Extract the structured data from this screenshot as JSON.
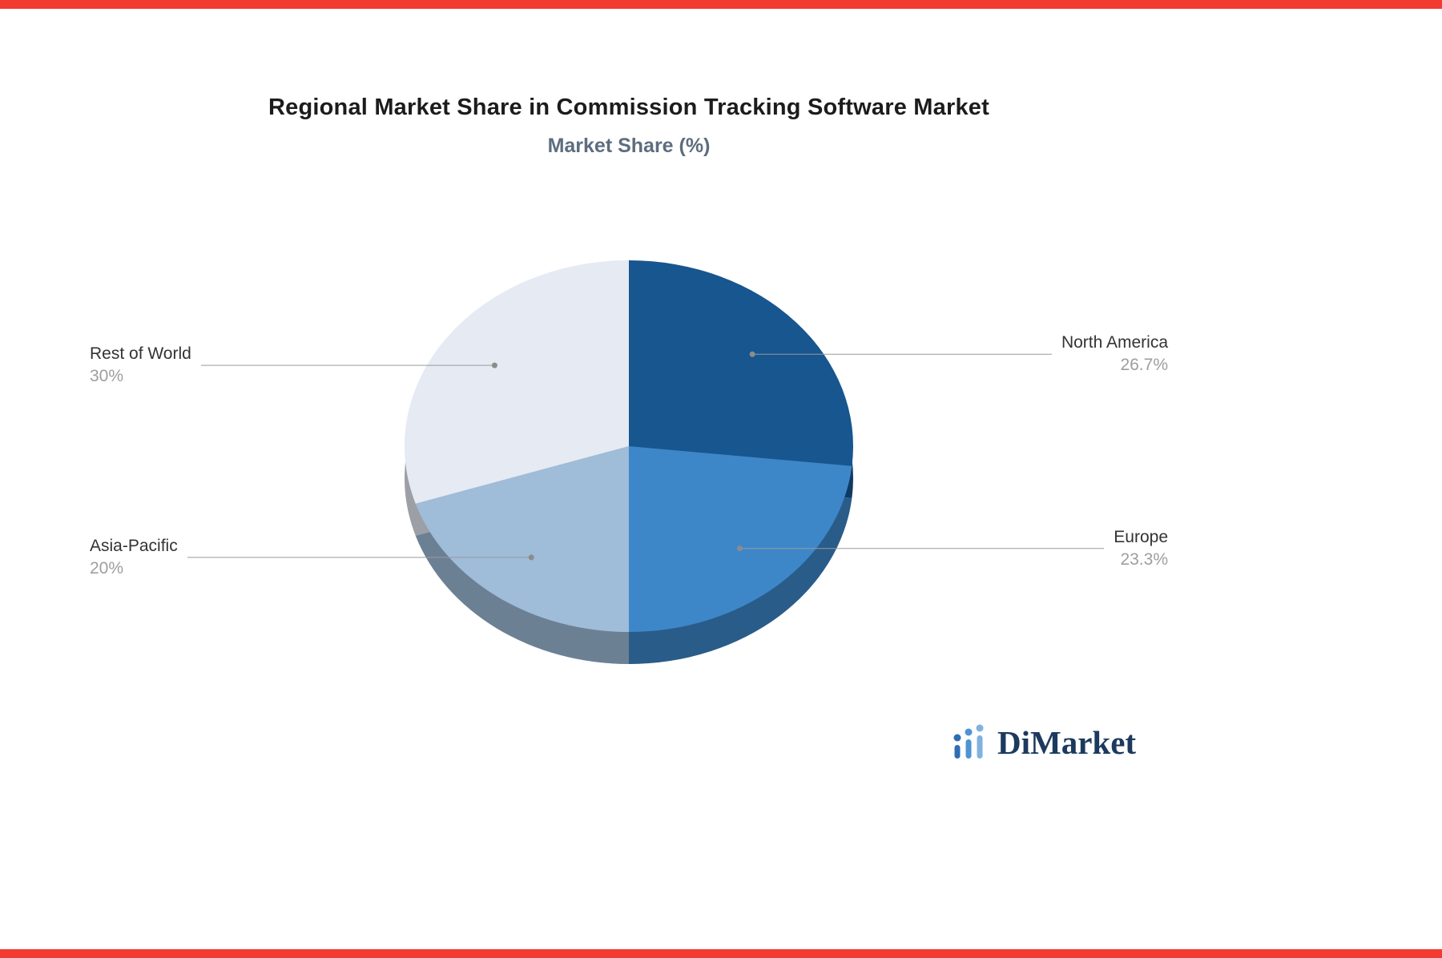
{
  "page": {
    "logo_text": "DiMarket",
    "accent_color": "#f23c32",
    "background_color": "#ffffff"
  },
  "chart_data": {
    "type": "pie",
    "title": "Regional Market Share in Commission Tracking Software Market",
    "subtitle": "Market Share (%)",
    "unit": "%",
    "legend_position": "none",
    "label_layout": "callout-edge",
    "label_name_color": "#333333",
    "label_value_color": "#9e9e9e",
    "leader_line_color": "#9a9a9a",
    "slices": [
      {
        "label": "North America",
        "value": 26.7,
        "display": "26.7%",
        "color": "#17568f",
        "side": "right"
      },
      {
        "label": "Europe",
        "value": 23.3,
        "display": "23.3%",
        "color": "#3d87c9",
        "side": "right"
      },
      {
        "label": "Asia-Pacific",
        "value": 20,
        "display": "20%",
        "color": "#9fbcd9",
        "side": "left"
      },
      {
        "label": "Rest of World",
        "value": 30,
        "display": "30%",
        "color": "#e5eaf3",
        "side": "left"
      }
    ],
    "start_angle_deg": 0,
    "clockwise": true,
    "three_d": true
  }
}
